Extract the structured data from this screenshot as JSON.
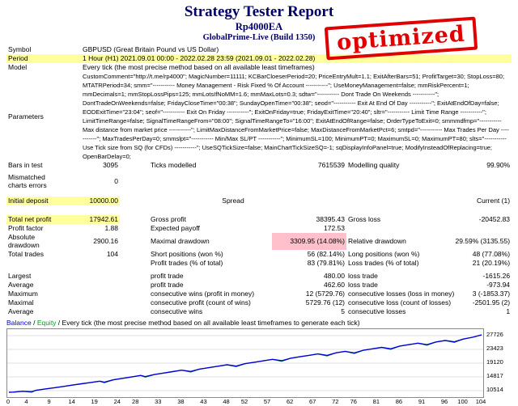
{
  "header": {
    "title": "Strategy Tester Report",
    "ea_name": "Rp4000EA",
    "server": "GlobalPrime-Live (Build 1350)",
    "stamp": "optimized"
  },
  "colors": {
    "highlight_yellow": "#ffff9e",
    "highlight_pink": "#ffc0cb",
    "title_navy": "#000066",
    "stamp_red": "#e00000",
    "balance_blue": "#0000d4",
    "equity_green": "#00a020"
  },
  "table": {
    "symbol": {
      "label": "Symbol",
      "value": "GBPUSD (Great Britain Pound vs US Dollar)"
    },
    "period": {
      "label": "Period",
      "value": "1 Hour (H1) 2021.09.01 00:00 - 2022.02.28 23:59 (2021.09.01 - 2022.02.28)"
    },
    "model": {
      "label": "Model",
      "value": "Every tick (the most precise method based on all available least timeframes)"
    },
    "parameters": {
      "label": "Parameters",
      "value": "CustomComment=\"http://t.me/rp4000\"; MagicNumber=11111; KCBarCloeserPeriod=20; PriceEntryMult=1.1; ExitAfterBars=51; ProfitTarget=30; StopLoss=80; MTATRPeriod=34; smm=\"----------- Money Management - Risk Fixed % Of Account -----------\"; UseMoneyManagement=false; mmRiskPercent=1; mmDecimals=1; mmStopLossPips=125; mmLotsIfNoMM=1.6; mmMaxLots=0.3; sdtw=\"----------- Dont Trade On Weekends -----------\"; DontTradeOnWeekends=false; FridayCloseTime=\"00:38\"; SundayOpenTime=\"00:38\"; seod=\"----------- Exit At End Of Day -----------\"; ExitAtEndOfDay=false; EODExitTime=\"23:04\"; seof=\"----------- Exit On Friday -----------\"; ExitOnFriday=true; FridayExitTime=\"20:40\"; sltr=\"----------- Limit Time Range -----------\"; LimitTimeRange=false; SignalTimeRangeFrom=\"08:00\"; SignalTimeRangeTo=\"16:00\"; ExitAtEndOfRange=false; OrderTypeToExit=0; smmmdfmp=\"----------- Max distance from market price -----------\"; LimitMaxDistanceFromMarketPrice=false; MaxDistanceFromMarketPct=6; smtpd=\"----------- Max Trades Per Day -----------\"; MaxTradesPerDay=0; smmslpt=\"----------- Min/Max SL/PT -----------\"; MinimumSL=100; MinimumPT=0; MaximumSL=0; MaximumPT=80; slts=\"----------- Use Tick size from SQ (for CFDs) -----------\"; UseSQTickSize=false; MainChartTickSizeSQ=-1; sqDisplayInfoPanel=true; ModifyInsteadOfReplacing=true; OpenBarDelay=0;"
    },
    "bars_in_test": {
      "label": "Bars in test",
      "value": "3095"
    },
    "ticks_modelled": {
      "label": "Ticks modelled",
      "value": "7615539"
    },
    "modelling_quality": {
      "label": "Modelling quality",
      "value": "99.90%"
    },
    "mismatched_charts_errors": {
      "label": "Mismatched charts errors",
      "value": "0"
    },
    "initial_deposit": {
      "label": "Initial deposit",
      "value": "10000.00"
    },
    "spread": {
      "label": "Spread",
      "value": "Current (1)"
    },
    "total_net_profit": {
      "label": "Total net profit",
      "value": "17942.61"
    },
    "gross_profit": {
      "label": "Gross profit",
      "value": "38395.43"
    },
    "gross_loss": {
      "label": "Gross loss",
      "value": "-20452.83"
    },
    "profit_factor": {
      "label": "Profit factor",
      "value": "1.88"
    },
    "expected_payoff": {
      "label": "Expected payoff",
      "value": "172.53"
    },
    "absolute_drawdown": {
      "label": "Absolute drawdown",
      "value": "2900.16"
    },
    "maximal_drawdown": {
      "label": "Maximal drawdown",
      "value": "3309.95 (14.08%)"
    },
    "relative_drawdown": {
      "label": "Relative drawdown",
      "value": "29.59% (3135.55)"
    },
    "total_trades": {
      "label": "Total trades",
      "value": "104"
    },
    "short_positions": {
      "label": "Short positions (won %)",
      "value": "56 (82.14%)"
    },
    "long_positions": {
      "label": "Long positions (won %)",
      "value": "48 (77.08%)"
    },
    "profit_trades": {
      "label": "Profit trades (% of total)",
      "value": "83 (79.81%)"
    },
    "loss_trades": {
      "label": "Loss trades (% of total)",
      "value": "21 (20.19%)"
    },
    "largest": {
      "label": "Largest",
      "profit_label": "profit trade",
      "profit_value": "480.00",
      "loss_label": "loss trade",
      "loss_value": "-1615.26"
    },
    "average_trade": {
      "label": "Average",
      "profit_label": "profit trade",
      "profit_value": "462.60",
      "loss_label": "loss trade",
      "loss_value": "-973.94"
    },
    "maximum_consecutive": {
      "label": "Maximum",
      "win_label": "consecutive wins (profit in money)",
      "win_value": "12 (5729.76)",
      "loss_label": "consecutive losses (loss in money)",
      "loss_value": "3 (-1853.37)"
    },
    "maximal_consecutive": {
      "label": "Maximal",
      "win_label": "consecutive profit (count of wins)",
      "win_value": "5729.76 (12)",
      "loss_label": "consecutive loss (count of losses)",
      "loss_value": "-2501.95 (2)"
    },
    "average_consecutive": {
      "label": "Average",
      "win_label": "consecutive wins",
      "win_value": "5",
      "loss_label": "consecutive losses",
      "loss_value": "1"
    }
  },
  "chart_data": {
    "type": "line",
    "legend": {
      "balance": "Balance",
      "sep1": " / ",
      "equity": "Equity",
      "suffix": " / Every tick (the most precise method based on all available least timeframes to generate each tick)"
    },
    "x_axis": {
      "max": 104,
      "labels": [
        "0",
        "4",
        "9",
        "14",
        "19",
        "24",
        "28",
        "33",
        "38",
        "43",
        "48",
        "52",
        "57",
        "62",
        "67",
        "72",
        "76",
        "81",
        "86",
        "91",
        "96",
        "100",
        "104"
      ]
    },
    "y_axis": {
      "labels": [
        "27726",
        "23423",
        "19120",
        "14817",
        "10514"
      ],
      "values": [
        27726,
        23423,
        19120,
        14817,
        10514
      ]
    },
    "grid": "horizontal",
    "series": [
      {
        "name": "Balance",
        "color": "#0000d4",
        "width": 1.4,
        "points": [
          [
            0,
            10000
          ],
          [
            1,
            10060
          ],
          [
            3,
            10320
          ],
          [
            5,
            10180
          ],
          [
            6,
            10650
          ],
          [
            8,
            11050
          ],
          [
            10,
            11420
          ],
          [
            12,
            11820
          ],
          [
            14,
            12260
          ],
          [
            16,
            12660
          ],
          [
            18,
            13060
          ],
          [
            20,
            13480
          ],
          [
            21,
            13150
          ],
          [
            23,
            13900
          ],
          [
            25,
            14360
          ],
          [
            27,
            14800
          ],
          [
            29,
            15260
          ],
          [
            30,
            14890
          ],
          [
            32,
            15560
          ],
          [
            34,
            16010
          ],
          [
            36,
            16460
          ],
          [
            38,
            16910
          ],
          [
            40,
            16520
          ],
          [
            42,
            17260
          ],
          [
            44,
            17710
          ],
          [
            46,
            18160
          ],
          [
            48,
            18610
          ],
          [
            50,
            18180
          ],
          [
            52,
            18960
          ],
          [
            54,
            19410
          ],
          [
            56,
            19860
          ],
          [
            58,
            20310
          ],
          [
            60,
            19870
          ],
          [
            62,
            20660
          ],
          [
            64,
            21110
          ],
          [
            66,
            21560
          ],
          [
            68,
            22010
          ],
          [
            70,
            21560
          ],
          [
            72,
            22360
          ],
          [
            74,
            22810
          ],
          [
            76,
            22300
          ],
          [
            78,
            23160
          ],
          [
            80,
            23610
          ],
          [
            82,
            24060
          ],
          [
            84,
            23600
          ],
          [
            86,
            24460
          ],
          [
            88,
            24910
          ],
          [
            90,
            25360
          ],
          [
            92,
            24880
          ],
          [
            94,
            25760
          ],
          [
            96,
            26210
          ],
          [
            98,
            25780
          ],
          [
            100,
            26660
          ],
          [
            102,
            27210
          ],
          [
            104,
            27942
          ]
        ]
      },
      {
        "name": "Equity",
        "color": "#00a020",
        "width": 1,
        "points": [
          [
            0,
            10000
          ],
          [
            1,
            10040
          ],
          [
            3,
            10300
          ],
          [
            5,
            9980
          ],
          [
            6,
            10630
          ],
          [
            8,
            11030
          ],
          [
            10,
            11400
          ],
          [
            12,
            11800
          ],
          [
            14,
            12240
          ],
          [
            16,
            12640
          ],
          [
            18,
            13040
          ],
          [
            20,
            13460
          ],
          [
            21,
            12950
          ],
          [
            23,
            13880
          ],
          [
            25,
            14340
          ],
          [
            27,
            14780
          ],
          [
            29,
            15240
          ],
          [
            30,
            14690
          ],
          [
            32,
            15540
          ],
          [
            34,
            15990
          ],
          [
            36,
            16440
          ],
          [
            38,
            16890
          ],
          [
            40,
            16320
          ],
          [
            42,
            17240
          ],
          [
            44,
            17690
          ],
          [
            46,
            18140
          ],
          [
            48,
            18590
          ],
          [
            50,
            17980
          ],
          [
            52,
            18940
          ],
          [
            54,
            19390
          ],
          [
            56,
            19840
          ],
          [
            58,
            20290
          ],
          [
            60,
            19670
          ],
          [
            62,
            20640
          ],
          [
            64,
            21090
          ],
          [
            66,
            21540
          ],
          [
            68,
            21990
          ],
          [
            70,
            21360
          ],
          [
            72,
            22340
          ],
          [
            74,
            22790
          ],
          [
            76,
            22100
          ],
          [
            78,
            23140
          ],
          [
            80,
            23590
          ],
          [
            82,
            24040
          ],
          [
            84,
            23400
          ],
          [
            86,
            24440
          ],
          [
            88,
            24890
          ],
          [
            90,
            25340
          ],
          [
            92,
            24680
          ],
          [
            94,
            25740
          ],
          [
            96,
            26190
          ],
          [
            98,
            25580
          ],
          [
            100,
            26640
          ],
          [
            102,
            27190
          ],
          [
            104,
            27942
          ]
        ]
      }
    ]
  }
}
